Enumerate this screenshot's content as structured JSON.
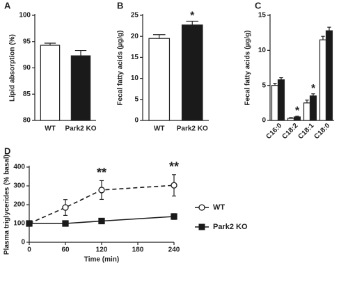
{
  "chart_data": [
    {
      "type": "bar",
      "panel": "A",
      "y_label": "Lipid absorption (%)",
      "categories": [
        "WT",
        "Park2 KO"
      ],
      "values": [
        94.3,
        92.3
      ],
      "errors": [
        0.4,
        1.0
      ],
      "colors": [
        "#ffffff",
        "#1a1a1a"
      ],
      "ylim": [
        80,
        100
      ],
      "yticks": [
        80,
        85,
        90,
        95,
        100
      ]
    },
    {
      "type": "bar",
      "panel": "B",
      "y_label": "Fecal fatty acids (µg/g)",
      "categories": [
        "WT",
        "Park2 KO"
      ],
      "values": [
        19.5,
        22.7
      ],
      "errors": [
        0.9,
        0.9
      ],
      "colors": [
        "#ffffff",
        "#1a1a1a"
      ],
      "ylim": [
        0,
        25
      ],
      "yticks": [
        0,
        5,
        10,
        15,
        20,
        25
      ],
      "annotations": [
        {
          "text": "*",
          "x": "Park2 KO"
        }
      ]
    },
    {
      "type": "grouped_bar",
      "panel": "C",
      "y_label": "Fecal fatty acids (µg/g)",
      "categories": [
        "C16:0",
        "C18:2",
        "C18:1",
        "C18:0"
      ],
      "series": [
        {
          "color": "#ffffff",
          "values": [
            5.0,
            0.3,
            2.5,
            11.5
          ],
          "errors": [
            0.3,
            0.1,
            0.4,
            0.5
          ]
        },
        {
          "color": "#1a1a1a",
          "values": [
            5.8,
            0.5,
            3.5,
            12.8
          ],
          "errors": [
            0.3,
            0.1,
            0.3,
            0.5
          ]
        }
      ],
      "ylim": [
        0,
        15
      ],
      "yticks": [
        0,
        5,
        10,
        15
      ],
      "annotations": [
        {
          "text": "*",
          "x": "C18:2"
        },
        {
          "text": "*",
          "x": "C18:1"
        }
      ]
    },
    {
      "type": "line",
      "panel": "D",
      "x_label": "Time (min)",
      "y_label": "Plasma triglycerides (% basal)",
      "x": [
        0,
        60,
        120,
        240
      ],
      "series": [
        {
          "name": "WT",
          "color": "#1a1a1a",
          "marker": "circle",
          "marker_fill": "#ffffff",
          "line_style": "dashed",
          "values": [
            100,
            185,
            278,
            303
          ],
          "errors": [
            0,
            42,
            50,
            57
          ]
        },
        {
          "name": "Park2 KO",
          "color": "#1a1a1a",
          "marker": "square",
          "marker_fill": "#1a1a1a",
          "line_style": "solid",
          "values": [
            100,
            100,
            113,
            137
          ],
          "errors": [
            5,
            6,
            8,
            15
          ]
        }
      ],
      "xlim": [
        0,
        240
      ],
      "xticks": [
        0,
        60,
        120,
        180,
        240
      ],
      "ylim": [
        0,
        400
      ],
      "yticks": [
        0,
        100,
        200,
        300,
        400
      ],
      "annotations": [
        {
          "text": "**",
          "x": 120
        },
        {
          "text": "**",
          "x": 240
        }
      ]
    }
  ]
}
